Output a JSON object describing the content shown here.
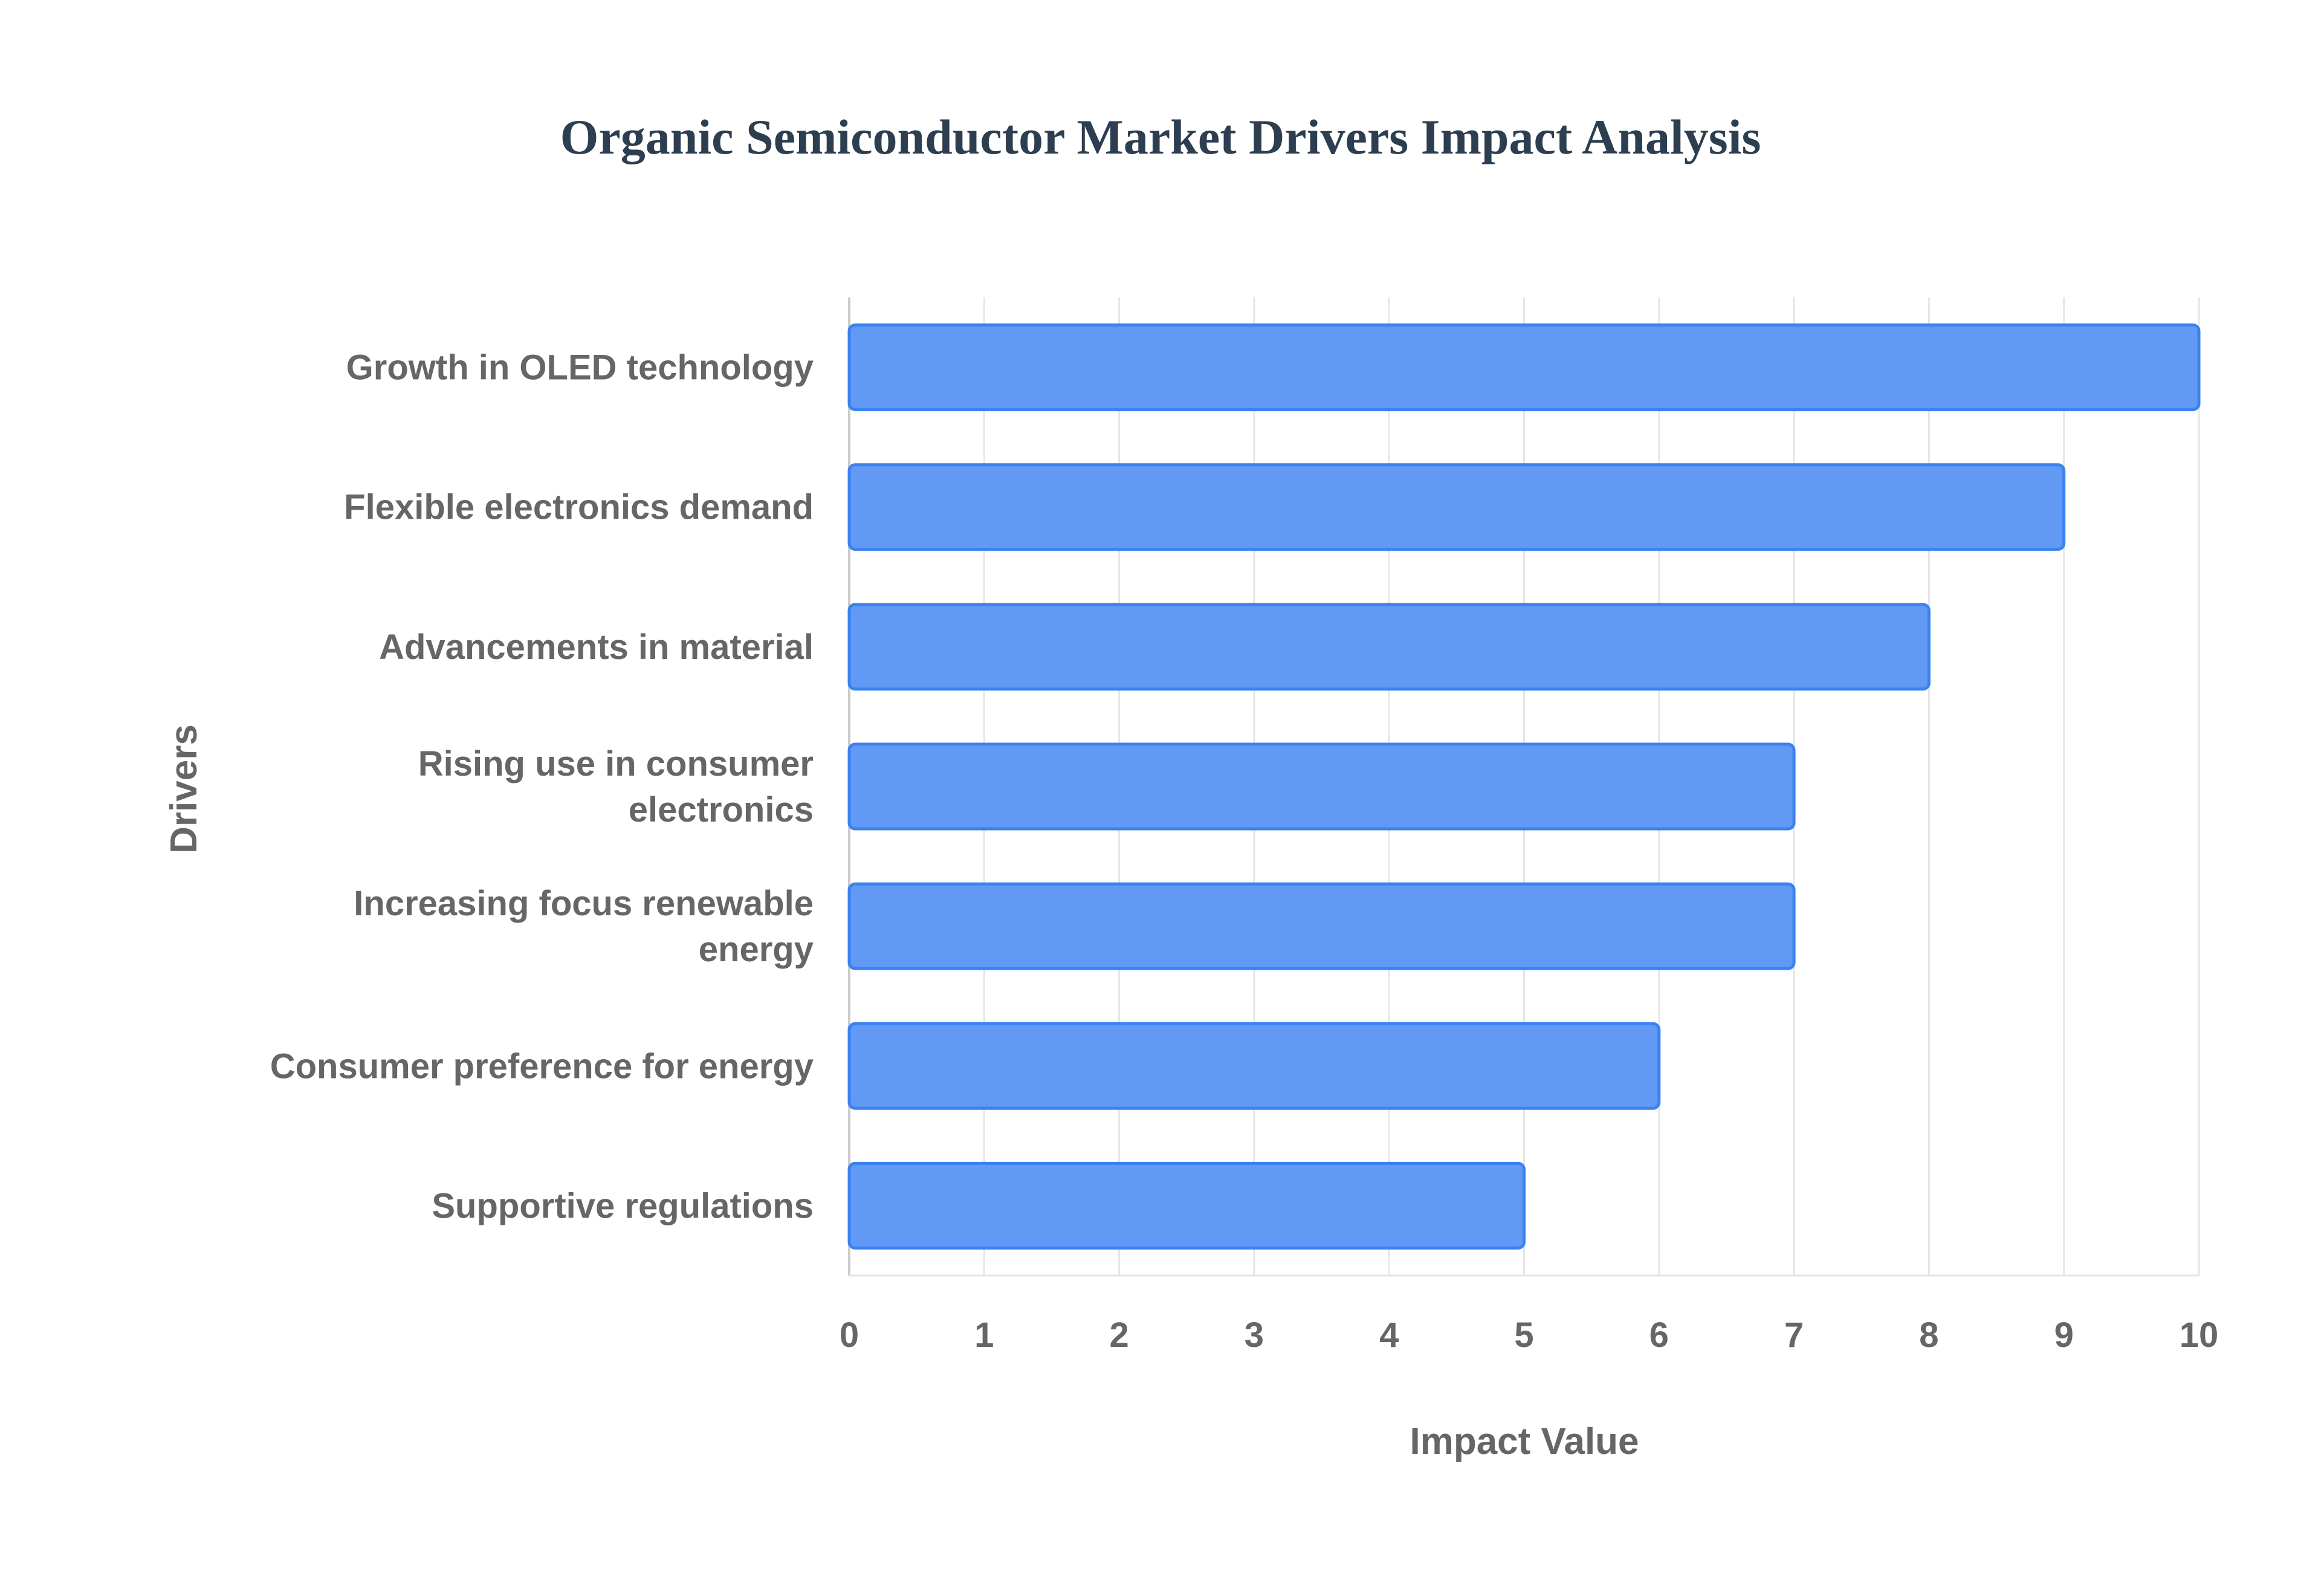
{
  "chart_data": {
    "type": "bar",
    "orientation": "horizontal",
    "title": "Organic Semiconductor Market Drivers Impact Analysis",
    "xlabel": "Impact Value",
    "ylabel": "Drivers",
    "categories": [
      "Growth in OLED technology",
      "Flexible electronics demand",
      "Advancements in material",
      "Rising use in consumer electronics",
      "Increasing focus renewable energy",
      "Consumer preference for energy",
      "Supportive regulations"
    ],
    "category_lines": [
      [
        "Growth in OLED technology"
      ],
      [
        "Flexible electronics demand"
      ],
      [
        "Advancements in material"
      ],
      [
        "Rising use in consumer",
        "electronics"
      ],
      [
        "Increasing focus renewable",
        "energy"
      ],
      [
        "Consumer preference for energy"
      ],
      [
        "Supportive regulations"
      ]
    ],
    "values": [
      10,
      9,
      8,
      7,
      7,
      6,
      5
    ],
    "xlim": [
      0,
      10
    ],
    "xticks": [
      "0",
      "1",
      "2",
      "3",
      "4",
      "5",
      "6",
      "7",
      "8",
      "9",
      "10"
    ],
    "grid": true,
    "colors": {
      "bar_fill": "#6199F5",
      "bar_border": "#3B82F0",
      "grid": "#e6e6e6",
      "text": "#666666",
      "title": "#2c3e50"
    }
  }
}
